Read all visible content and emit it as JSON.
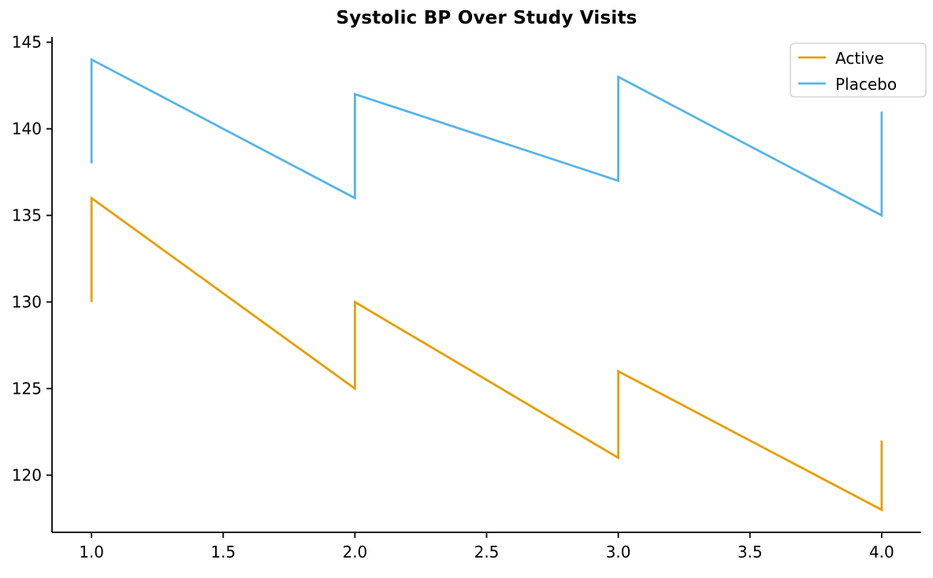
{
  "figure": {
    "title": "Systolic BP Over Study Visits"
  },
  "chart_data": {
    "type": "line",
    "title": "Systolic BP Over Study Visits",
    "xlabel": "",
    "ylabel": "",
    "xlim": [
      0.85,
      4.15
    ],
    "ylim": [
      116.7,
      145.3
    ],
    "x_ticks": [
      1.0,
      1.5,
      2.0,
      2.5,
      3.0,
      3.5,
      4.0
    ],
    "x_tick_labels": [
      "1.0",
      "1.5",
      "2.0",
      "2.5",
      "3.0",
      "3.5",
      "4.0"
    ],
    "y_ticks": [
      120,
      125,
      130,
      135,
      140,
      145
    ],
    "y_tick_labels": [
      "120",
      "125",
      "130",
      "135",
      "140",
      "145"
    ],
    "grid": false,
    "spines": [
      "left",
      "bottom"
    ],
    "axis_color": "#000000",
    "background_color": "#FFFFFF",
    "legend": {
      "position": "upper right",
      "border_color": "#CCCCCC",
      "fill_color": "#FFFFFF",
      "entries": [
        "Active",
        "Placebo"
      ]
    },
    "series": [
      {
        "name": "Active",
        "color": "#E69F00",
        "points": [
          [
            1,
            130
          ],
          [
            1,
            136
          ],
          [
            2,
            125
          ],
          [
            2,
            130
          ],
          [
            3,
            121
          ],
          [
            3,
            126
          ],
          [
            4,
            118
          ],
          [
            4,
            122
          ]
        ]
      },
      {
        "name": "Placebo",
        "color": "#56B4E9",
        "points": [
          [
            1,
            138
          ],
          [
            1,
            144
          ],
          [
            2,
            136
          ],
          [
            2,
            142
          ],
          [
            3,
            137
          ],
          [
            3,
            143
          ],
          [
            4,
            135
          ],
          [
            4,
            141
          ]
        ]
      }
    ]
  }
}
